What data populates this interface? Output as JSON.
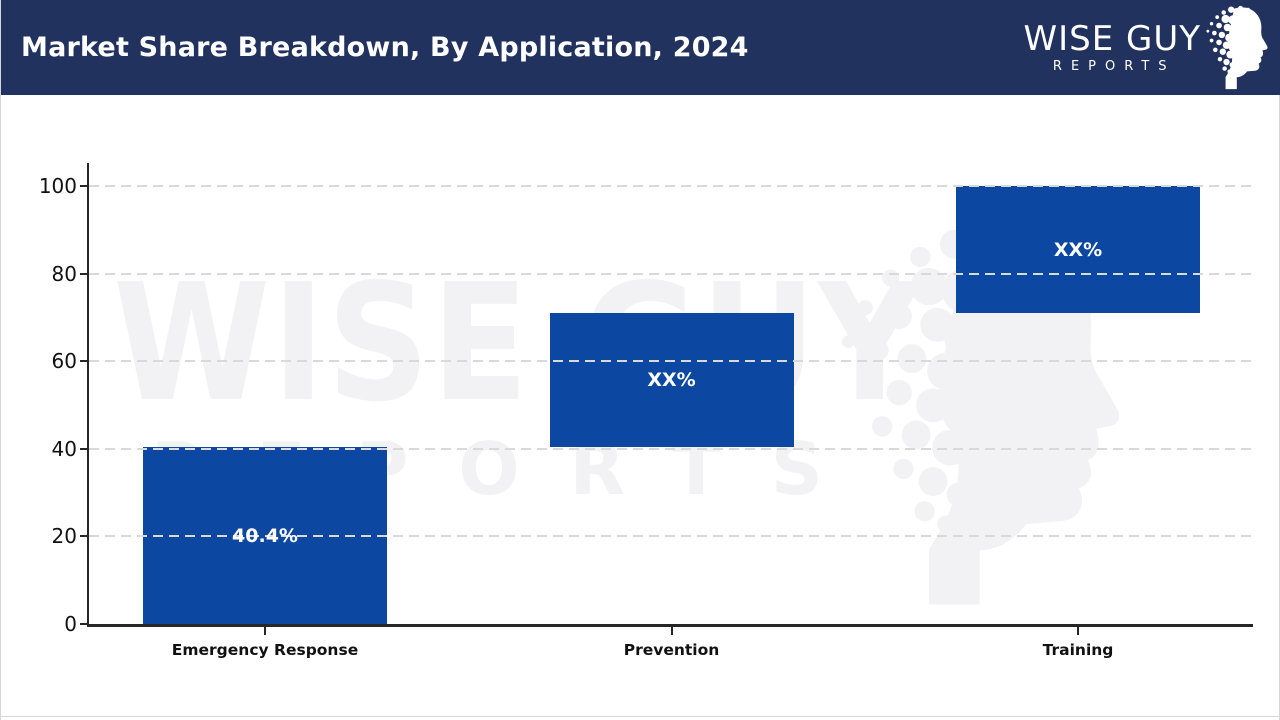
{
  "header": {
    "title": "Market Share Breakdown, By Application, 2024",
    "bg_color": "#22325f",
    "logo": {
      "line1": "WISE GUY",
      "line2": "REPORTS"
    }
  },
  "watermark": {
    "line1": "WISE GUY",
    "line2": "REPORTS"
  },
  "chart_data": {
    "type": "bar",
    "subtype": "waterfall-stacked-breakdown",
    "title": "Market Share Breakdown, By Application, 2024",
    "categories": [
      "Emergency Response",
      "Prevention",
      "Training"
    ],
    "segments": [
      {
        "category": "Emergency Response",
        "start": 0,
        "end": 40.4,
        "label": "40.4%"
      },
      {
        "category": "Prevention",
        "start": 40.4,
        "end": 71,
        "label": "XX%"
      },
      {
        "category": "Training",
        "start": 71,
        "end": 100,
        "label": "XX%"
      }
    ],
    "yticks": [
      0,
      20,
      40,
      60,
      80,
      100
    ],
    "ylim": [
      0,
      105
    ],
    "xlabel": "",
    "ylabel": "",
    "grid": "horizontal-dashed",
    "gridline_color": "#d9d9d9",
    "bar_color": "#0c47a2",
    "bar_label_color": "#ffffff",
    "axis_color": "#262626",
    "legend": "none"
  }
}
